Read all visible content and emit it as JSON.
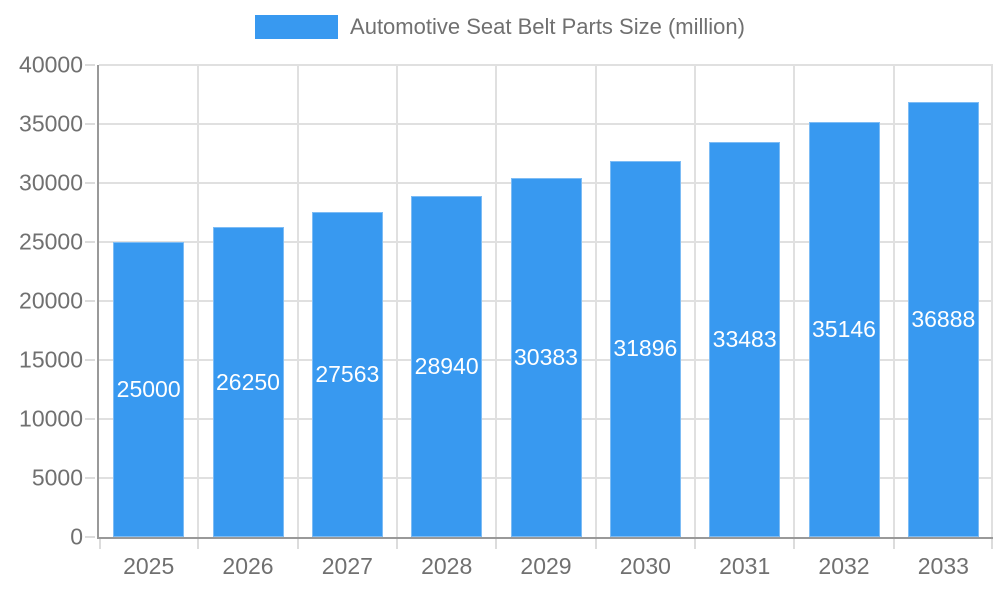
{
  "page": {
    "background": "#ffffff"
  },
  "legend": {
    "position": "top",
    "items": [
      {
        "label": "Automotive Seat Belt Parts Size (million)",
        "color": "#3899F0"
      }
    ]
  },
  "chart_data": {
    "type": "bar",
    "title": "",
    "series_name": "Automotive Seat Belt Parts Size (million)",
    "categories": [
      "2025",
      "2026",
      "2027",
      "2028",
      "2029",
      "2030",
      "2031",
      "2032",
      "2033"
    ],
    "values": [
      25000,
      26250,
      27563,
      28940,
      30383,
      31896,
      33483,
      35146,
      36888
    ],
    "xlabel": "",
    "ylabel": "",
    "ylim": [
      0,
      40000
    ],
    "yticks": [
      0,
      5000,
      10000,
      15000,
      20000,
      25000,
      30000,
      35000,
      40000
    ],
    "grid": true,
    "legend_position": "top",
    "bar_label_position": "inside-center"
  },
  "colors": {
    "bar": "#3899F0",
    "bar_border": "#7DBCF5",
    "bar_label_text": "#ffffff",
    "axis_line": "#999999",
    "grid_line": "#E0E0E0",
    "tick_mark": "#DCDCDC",
    "tick_text": "#707070",
    "legend_text": "#707070"
  }
}
